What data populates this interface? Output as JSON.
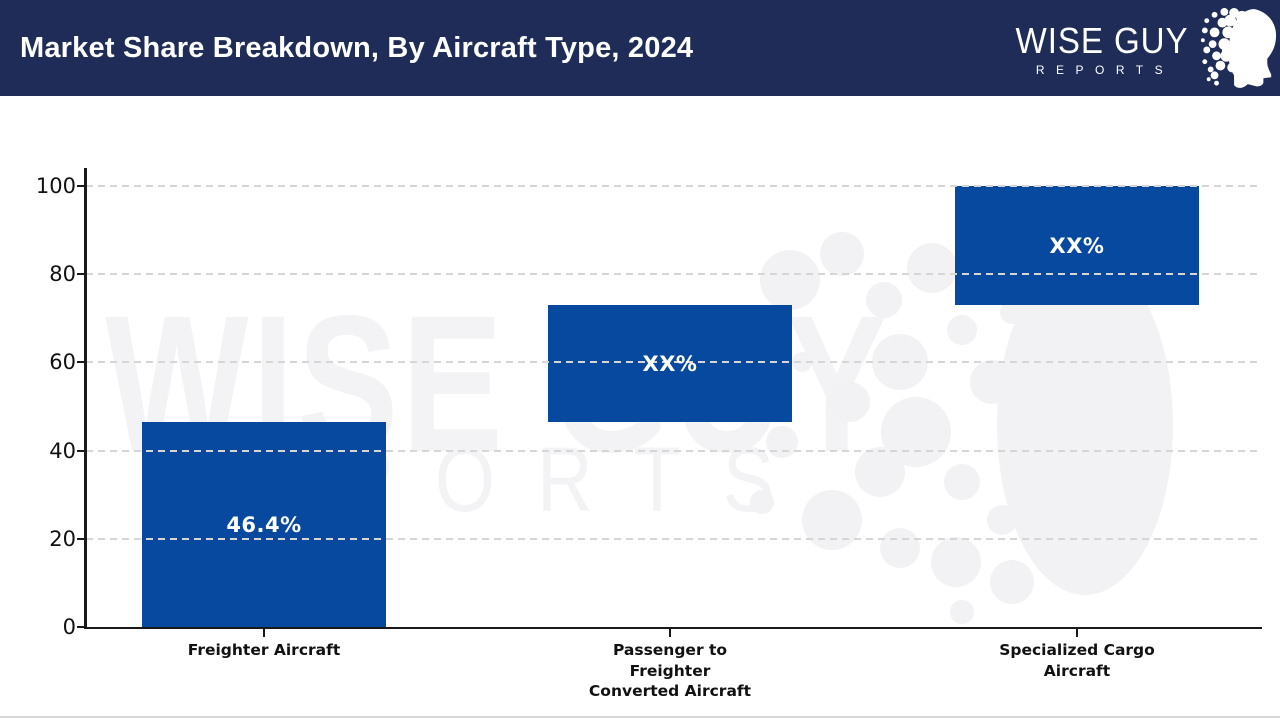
{
  "header": {
    "title": "Market Share Breakdown, By Aircraft Type, 2024",
    "logo": {
      "name": "WISE GUY",
      "sub": "REPORTS"
    }
  },
  "watermark": {
    "line1": "WISE GUY",
    "line2": "REPORTS"
  },
  "chart_data": {
    "type": "bar",
    "subtype": "floating-segment-waterfall",
    "title": "Market Share Breakdown, By Aircraft Type, 2024",
    "categories": [
      "Freighter Aircraft",
      "Passenger to Freighter Converted Aircraft",
      "Specialized Cargo Aircraft"
    ],
    "category_label_lines": [
      [
        "Freighter Aircraft"
      ],
      [
        "Passenger to",
        "Freighter",
        "Converted Aircraft"
      ],
      [
        "Specialized Cargo",
        "Aircraft"
      ]
    ],
    "segments": [
      {
        "category": "Freighter Aircraft",
        "start": 0,
        "end": 46.4,
        "label": "46.4%"
      },
      {
        "category": "Passenger to Freighter Converted Aircraft",
        "start": 46.4,
        "end": 73,
        "label": "XX%"
      },
      {
        "category": "Specialized Cargo Aircraft",
        "start": 73,
        "end": 100,
        "label": "XX%"
      }
    ],
    "ylim": [
      0,
      100
    ],
    "yticks": [
      0,
      20,
      40,
      60,
      80,
      100
    ],
    "xlabel": "",
    "ylabel": "",
    "grid": "horizontal-dashed",
    "legend": "none",
    "bar_color": "#06499e",
    "bar_label_color": "#ffffff",
    "axis_color": "#1a1a1a",
    "gridline_color": "#d6d6d6"
  },
  "colors": {
    "header_bg": "#1e2c57",
    "page_bg": "#ffffff",
    "watermark": "#f3f3f5"
  }
}
